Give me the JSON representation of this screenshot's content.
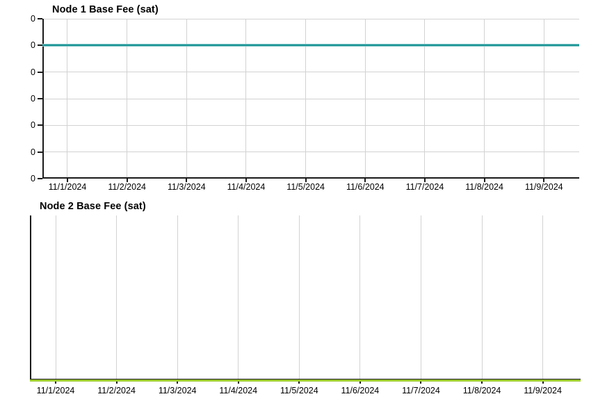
{
  "page": {
    "background": "#ffffff"
  },
  "colors": {
    "grid": "#D2D2D2",
    "axis": "#1A1A1A",
    "label": "#000000"
  },
  "chart_data": [
    {
      "type": "line",
      "title": "Node 1 Base Fee (sat)",
      "x": [
        "11/1/2024",
        "11/2/2024",
        "11/3/2024",
        "11/4/2024",
        "11/5/2024",
        "11/6/2024",
        "11/7/2024",
        "11/8/2024",
        "11/9/2024"
      ],
      "series": [
        {
          "name": "Node 1 Base Fee",
          "values": [
            0,
            0,
            0,
            0,
            0,
            0,
            0,
            0,
            0
          ],
          "color": "#1E9697",
          "edge_color": "#7BC2C3"
        }
      ],
      "y_ticks": [
        "0",
        "0",
        "0",
        "0",
        "0",
        "0",
        "0"
      ],
      "ylim": [
        0,
        0
      ],
      "xlabel": "",
      "ylabel": "",
      "grid": {
        "horizontal": true,
        "vertical": true
      },
      "legend": "none"
    },
    {
      "type": "line",
      "title": "Node 2 Base Fee (sat)",
      "x": [
        "11/1/2024",
        "11/2/2024",
        "11/3/2024",
        "11/4/2024",
        "11/5/2024",
        "11/6/2024",
        "11/7/2024",
        "11/8/2024",
        "11/9/2024"
      ],
      "series": [
        {
          "name": "Node 2 Base Fee",
          "values": [
            0,
            0,
            0,
            0,
            0,
            0,
            0,
            0,
            0
          ],
          "color": "#9CCB2D"
        }
      ],
      "y_ticks": [],
      "ylim": [
        0,
        0
      ],
      "xlabel": "",
      "ylabel": "",
      "grid": {
        "horizontal": false,
        "vertical": true
      },
      "legend": "none"
    }
  ]
}
